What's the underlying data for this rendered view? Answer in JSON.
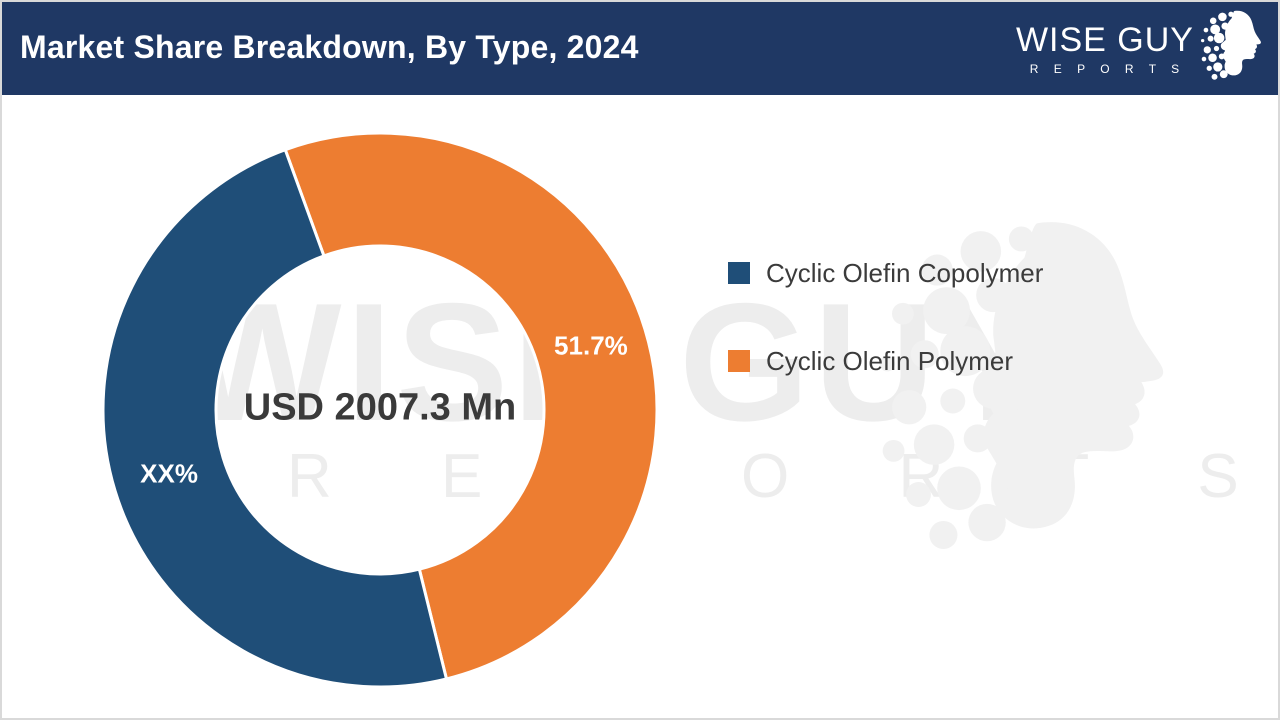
{
  "header": {
    "title": "Market Share Breakdown, By Type, 2024",
    "logo": {
      "line1": "WISE GUY",
      "line2": "R E P O R T S"
    }
  },
  "watermark": {
    "line1": "WISE GUY",
    "line2": "R E P O R T S"
  },
  "legend": {
    "items": [
      {
        "label": "Cyclic Olefin Copolymer",
        "color": "#1f4e78"
      },
      {
        "label": "Cyclic Olefin Polymer",
        "color": "#ed7d31"
      }
    ]
  },
  "chart_data": {
    "type": "pie",
    "subtype": "donut",
    "title": "Market Share Breakdown, By Type, 2024",
    "center_label": "USD 2007.3 Mn",
    "start_angle_deg": -20,
    "outer_radius": 277,
    "inner_radius": 164,
    "segments": [
      {
        "label": "Cyclic Olefin Polymer",
        "value": 51.7,
        "display_label": "51.7%",
        "color": "#ed7d31"
      },
      {
        "label": "Cyclic Olefin Copolymer",
        "value": 48.3,
        "display_label": "XX%",
        "color": "#1f4e78"
      }
    ],
    "legend_position": "right",
    "colors": {
      "header_bar": "#1f3864",
      "watermark": "#ededed",
      "center_text": "#3a3a3a",
      "legend_text": "#3b3b3b",
      "slice_separator": "#ffffff"
    }
  }
}
